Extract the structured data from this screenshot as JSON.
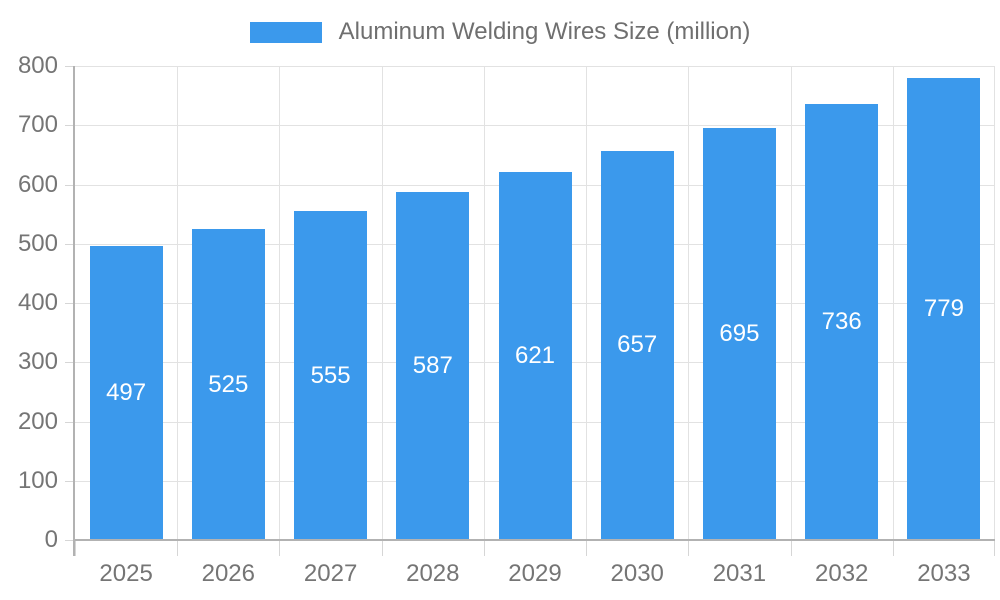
{
  "chart_data": {
    "type": "bar",
    "title": "Aluminum Welding Wires Size (million)",
    "legend_label": "Aluminum Welding Wires Size (million)",
    "legend_position": "top-center",
    "categories": [
      "2025",
      "2026",
      "2027",
      "2028",
      "2029",
      "2030",
      "2031",
      "2032",
      "2033"
    ],
    "values": [
      497,
      525,
      555,
      587,
      621,
      657,
      695,
      736,
      779
    ],
    "xlabel": "",
    "ylabel": "",
    "ylim": [
      0,
      800
    ],
    "ytick_interval": 100,
    "yticks": [
      0,
      100,
      200,
      300,
      400,
      500,
      600,
      700,
      800
    ],
    "grid": true,
    "colors": {
      "bar": "#3b99ec",
      "grid": "#e2e2e2",
      "axis": "#b2b2b2",
      "tick": "#d6d6d6",
      "axis_label": "#757575",
      "legend_text": "#6f6f6f",
      "value_label": "#ffffff",
      "background": "#ffffff"
    }
  }
}
